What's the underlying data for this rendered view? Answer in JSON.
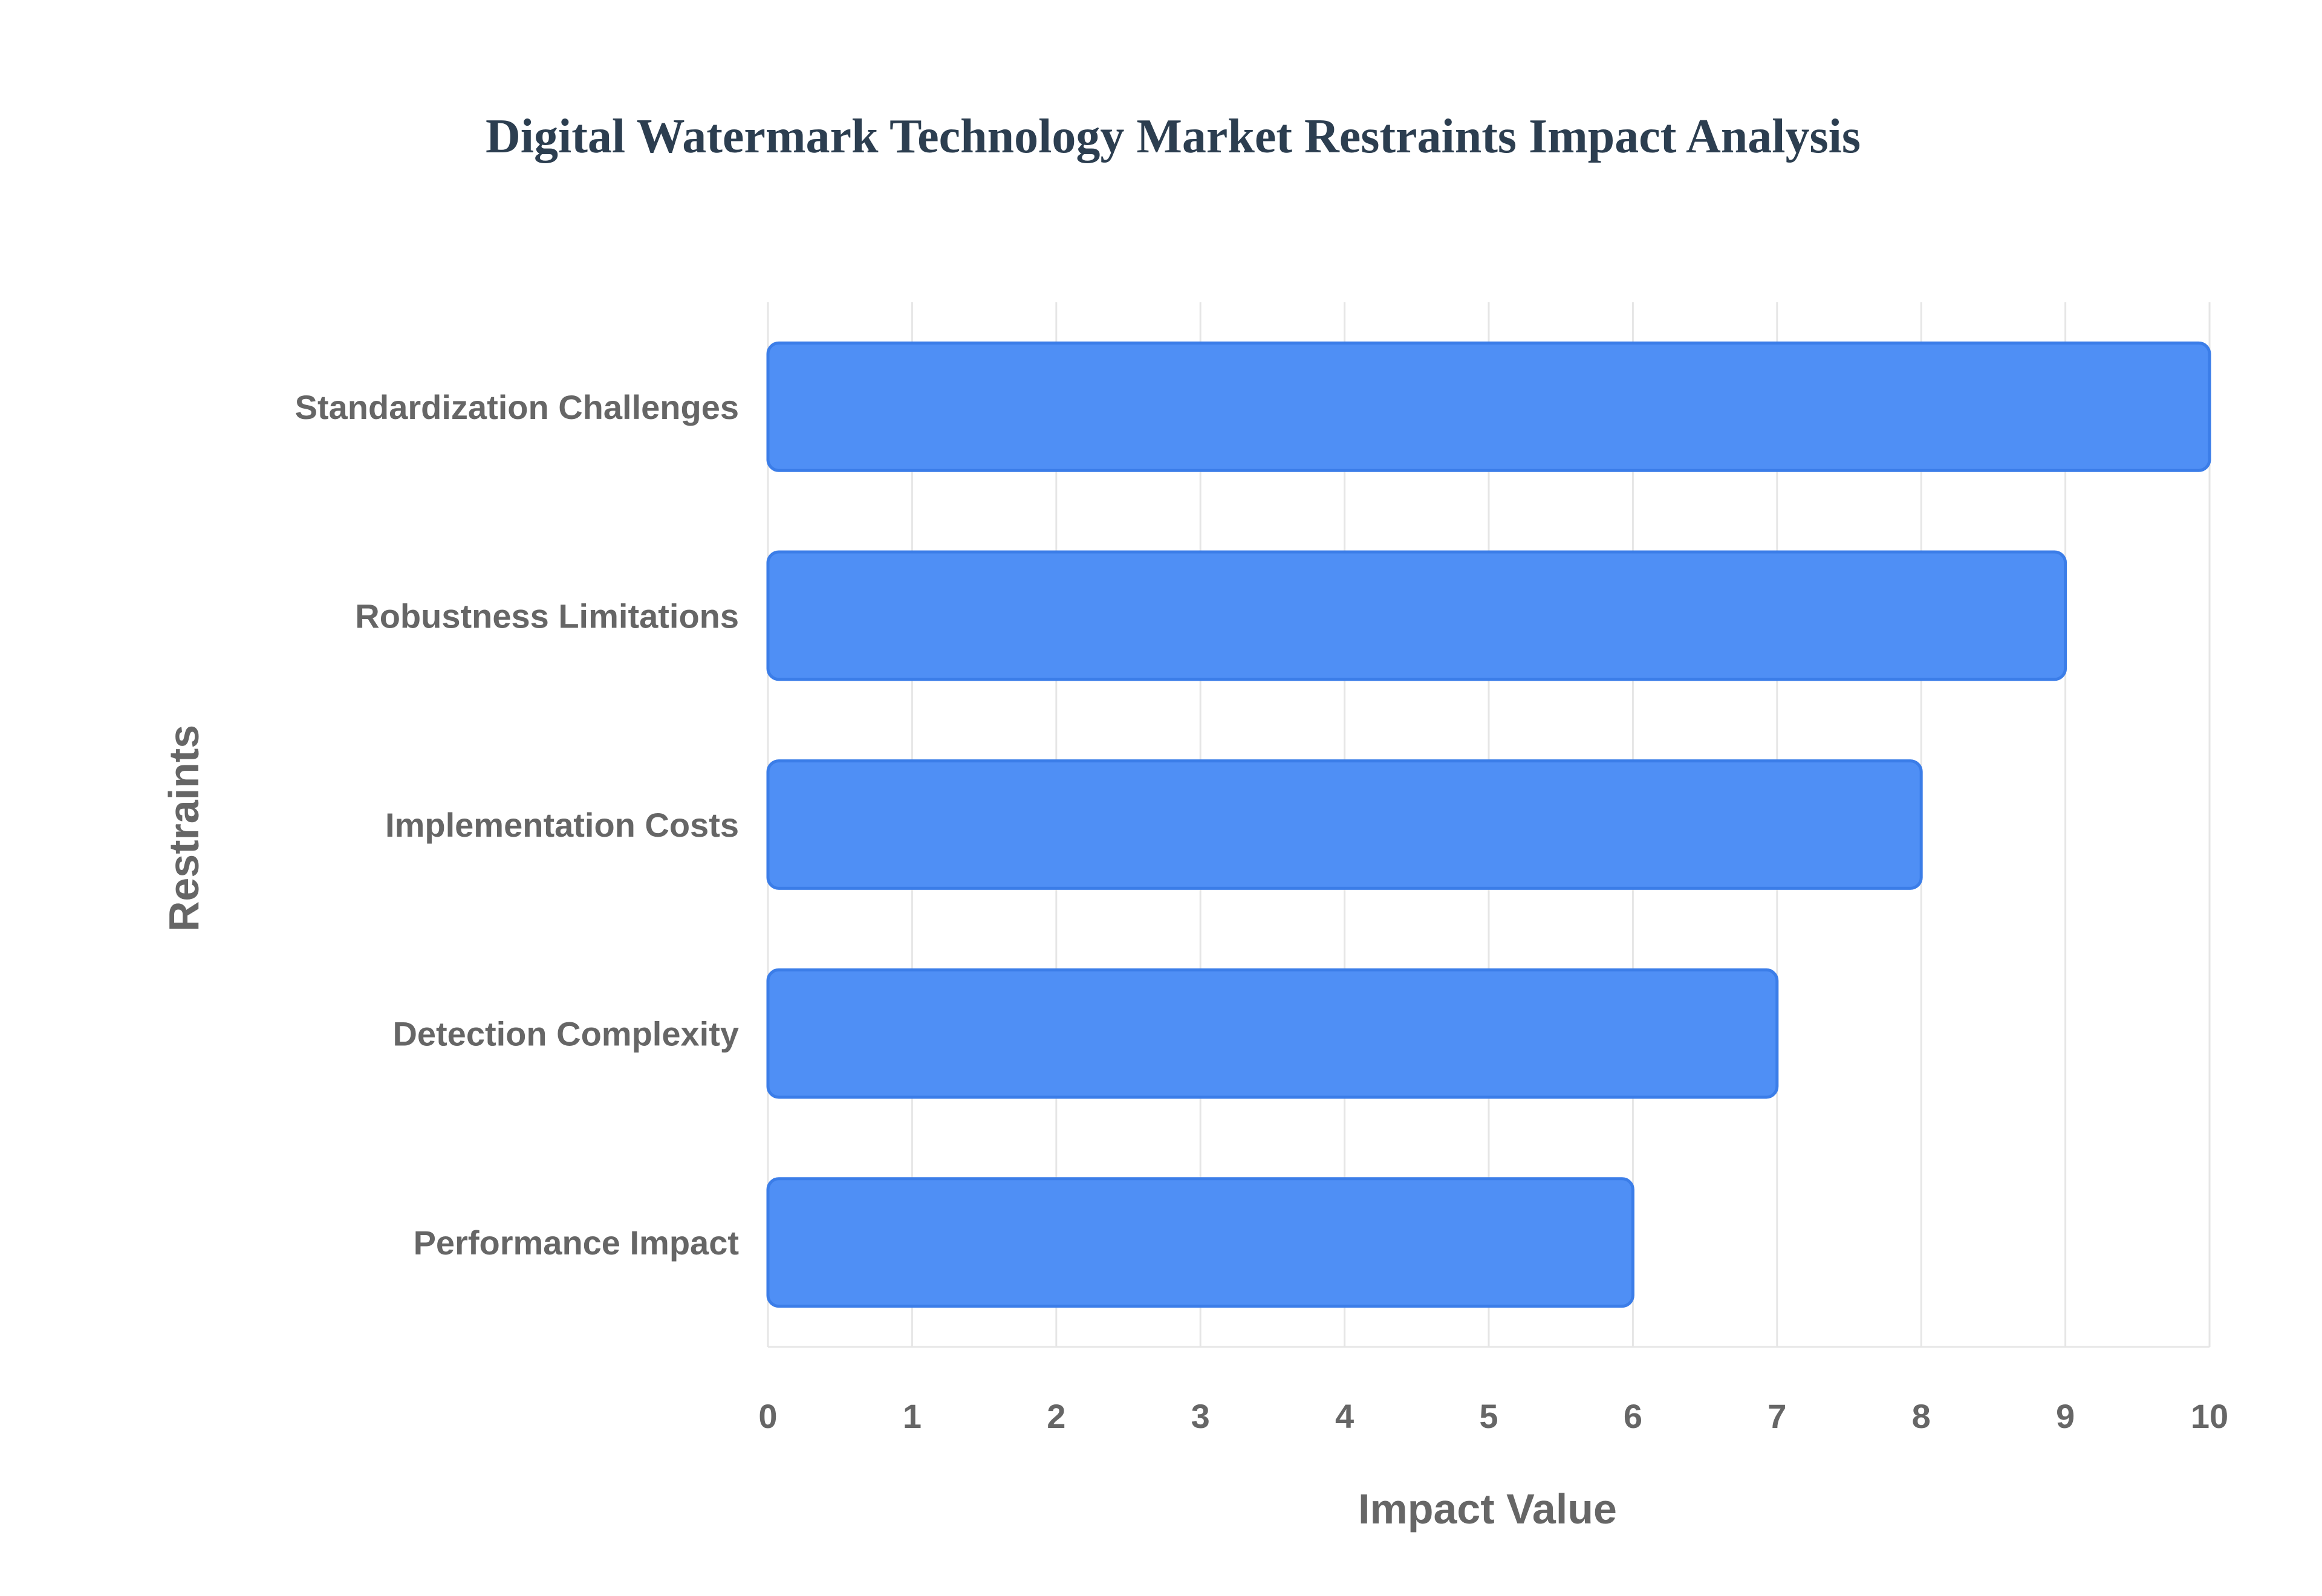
{
  "chart_data": {
    "type": "bar",
    "orientation": "horizontal",
    "title": "Digital Watermark Technology Market Restraints Impact Analysis",
    "xlabel": "Impact Value",
    "ylabel": "Restraints",
    "categories": [
      "Standardization Challenges",
      "Robustness Limitations",
      "Implementation Costs",
      "Detection Complexity",
      "Performance Impact"
    ],
    "values": [
      10,
      9,
      8,
      7,
      6
    ],
    "xlim": [
      0,
      10
    ],
    "xticks": [
      "0",
      "1",
      "2",
      "3",
      "4",
      "5",
      "6",
      "7",
      "8",
      "9",
      "10"
    ],
    "grid": true,
    "legend": "none",
    "colors": {
      "bar_fill": "#4f8ff5",
      "bar_stroke": "#3b7de8",
      "grid": "#e6e6e6",
      "axis_text": "#666666",
      "title": "#2c3e50"
    }
  }
}
